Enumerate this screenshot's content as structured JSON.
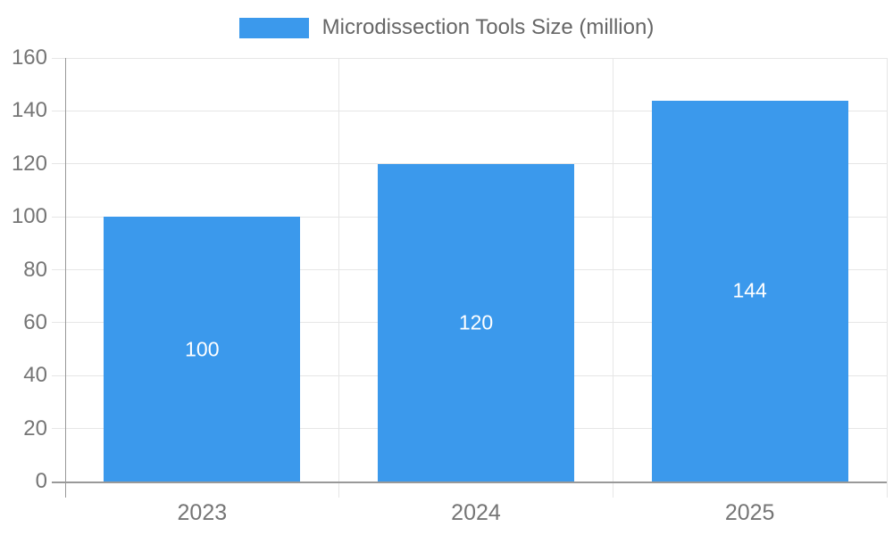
{
  "chart_data": {
    "type": "bar",
    "title": "",
    "categories": [
      "2023",
      "2024",
      "2025"
    ],
    "series": [
      {
        "name": "Microdissection Tools Size (million)",
        "values": [
          100,
          120,
          144
        ],
        "color": "#3B99EC"
      }
    ],
    "xlabel": "",
    "ylabel": "",
    "ylim": [
      0,
      160
    ],
    "ytick_step": 20,
    "ytick_labels": [
      "0",
      "20",
      "40",
      "60",
      "80",
      "100",
      "120",
      "140",
      "160"
    ],
    "grid": true,
    "legend_position": "top-center",
    "value_labels": {
      "position": "center-of-bar",
      "values": [
        "100",
        "120",
        "144"
      ]
    }
  },
  "legend": {
    "label": "Microdissection Tools Size (million)",
    "swatch_color": "#3B99EC"
  },
  "colors": {
    "background": "#ffffff",
    "bar": "#3B99EC",
    "gridline": "#e6e6e6",
    "axis_line": "#999999",
    "tick_label": "#757575",
    "legend_text": "#666666",
    "value_label": "#ffffff"
  }
}
